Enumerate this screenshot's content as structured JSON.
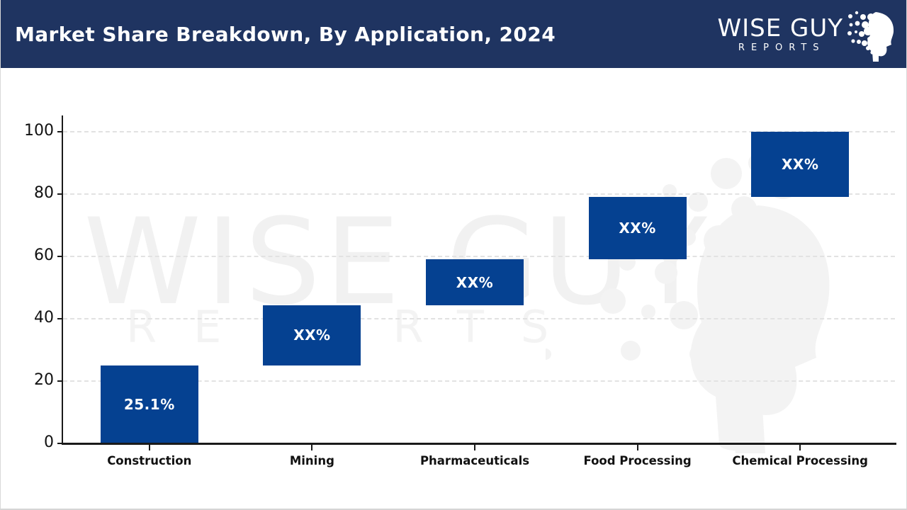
{
  "header": {
    "title": "Market Share Breakdown, By Application, 2024",
    "logo": {
      "line1": "WISE GUY",
      "line2": "REPORTS"
    }
  },
  "watermark": {
    "line1": "WISE GUY",
    "line2": "REPORTS"
  },
  "colors": {
    "header_bg": "#1f3461",
    "bar": "#054191",
    "bar_label": "#ffffff",
    "grid": "#e2e2e2",
    "axis": "#1a1a1a",
    "text": "#111111",
    "watermark": "#f1f1f1"
  },
  "chart_data": {
    "type": "bar",
    "subtype": "waterfall",
    "title": "Market Share Breakdown, By Application, 2024",
    "categories": [
      "Construction",
      "Mining",
      "Pharmaceuticals",
      "Food Processing",
      "Chemical Processing"
    ],
    "segments": [
      {
        "category": "Construction",
        "start": 0,
        "end": 25.1,
        "label": "25.1%"
      },
      {
        "category": "Mining",
        "start": 25.1,
        "end": 44.3,
        "label": "XX%"
      },
      {
        "category": "Pharmaceuticals",
        "start": 44.3,
        "end": 59.0,
        "label": "XX%"
      },
      {
        "category": "Food Processing",
        "start": 59.0,
        "end": 79.1,
        "label": "XX%"
      },
      {
        "category": "Chemical Processing",
        "start": 79.1,
        "end": 100,
        "label": "XX%"
      }
    ],
    "yticks": [
      0,
      20,
      40,
      60,
      80,
      100
    ],
    "ylim": [
      0,
      100
    ],
    "xlabel": "",
    "ylabel": "",
    "grid": "dashed-horizontal",
    "legend": "none"
  }
}
